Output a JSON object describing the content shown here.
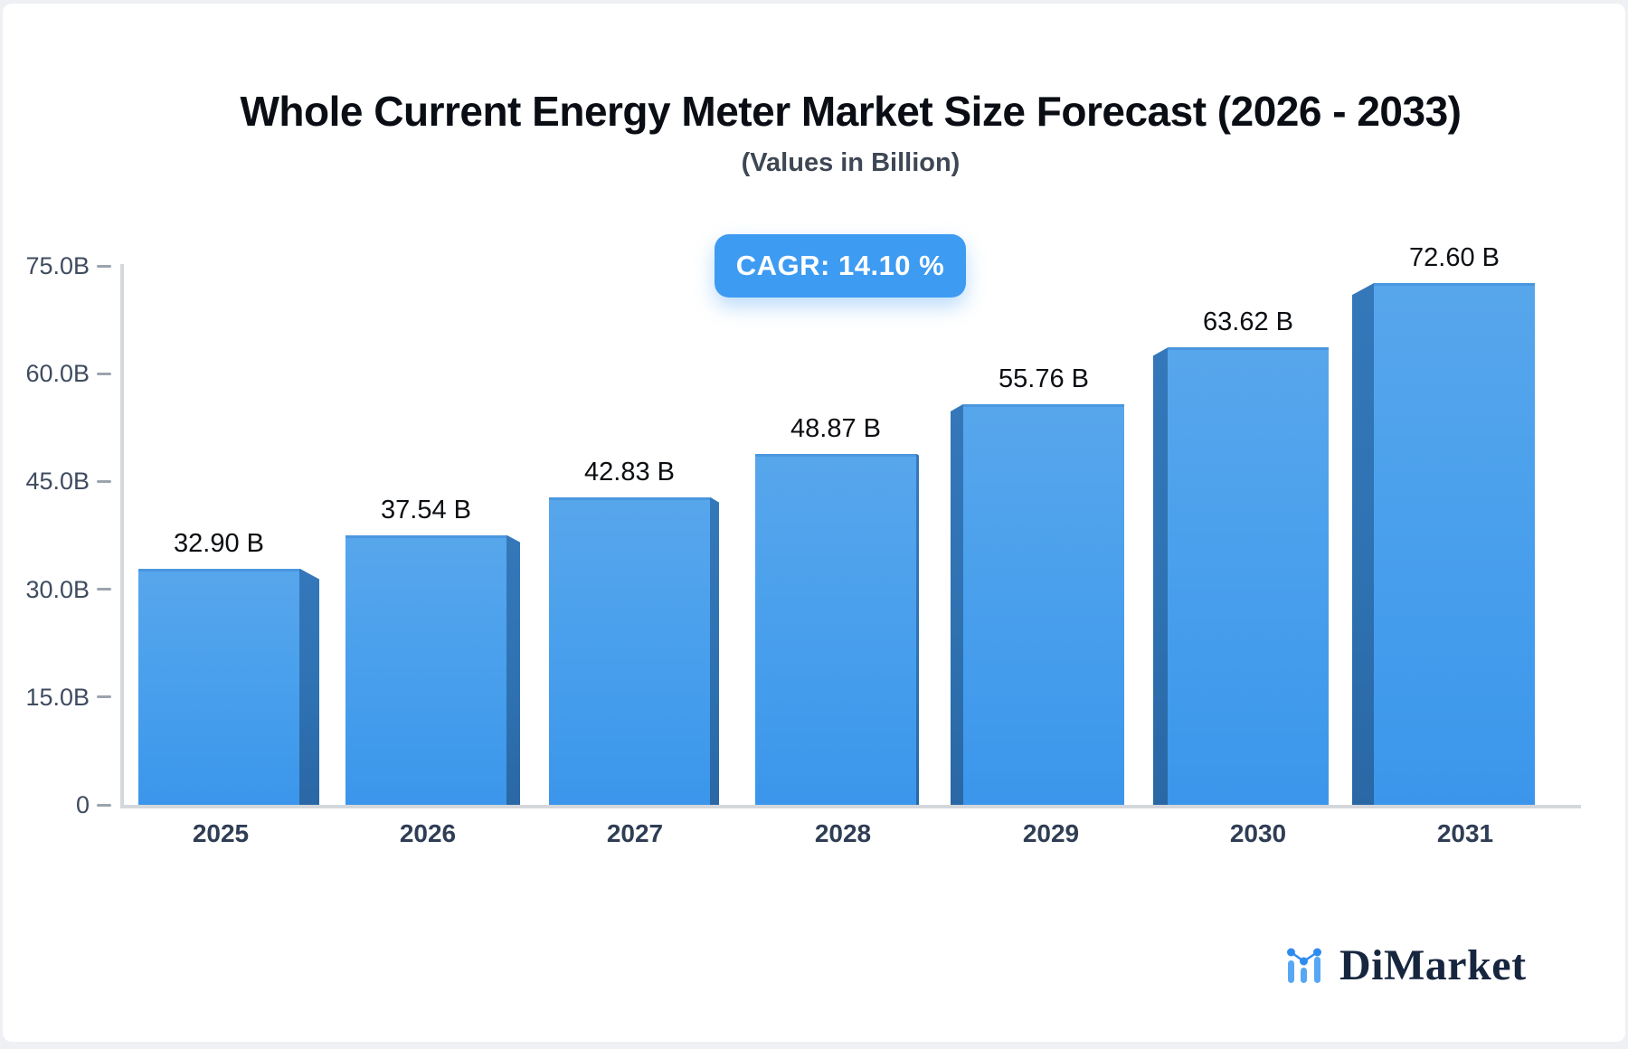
{
  "header": {
    "title": "Whole Current Energy Meter Market Size Forecast (2026 - 2033)",
    "subtitle": "(Values in Billion)"
  },
  "badge": {
    "label": "CAGR: 14.10 %",
    "color": "#3e9bf2"
  },
  "logo": {
    "text": "DiMarket",
    "icon": "mini-bar-chart-with-trend-dots-icon"
  },
  "chart_data": {
    "type": "bar",
    "title": "Whole Current Energy Meter Market Size Forecast (2026 - 2033)",
    "subtitle": "(Values in Billion)",
    "categories": [
      "2025",
      "2026",
      "2027",
      "2028",
      "2029",
      "2030",
      "2031"
    ],
    "values": [
      32.9,
      37.54,
      42.83,
      48.87,
      55.76,
      63.62,
      72.6
    ],
    "value_labels": [
      "32.90 B",
      "37.54 B",
      "42.83 B",
      "48.87 B",
      "55.76 B",
      "63.62 B",
      "72.60 B"
    ],
    "cagr_annotation": "CAGR: 14.10 %",
    "xlabel": "",
    "ylabel": "",
    "ylim": [
      0,
      75
    ],
    "yticks": [
      {
        "value": 75,
        "label": "75.0B"
      },
      {
        "value": 60,
        "label": "60.0B"
      },
      {
        "value": 45,
        "label": "45.0B"
      },
      {
        "value": 30,
        "label": "30.0B"
      },
      {
        "value": 15,
        "label": "15.0B"
      },
      {
        "value": 0,
        "label": "0"
      }
    ],
    "grid": false,
    "legend": false,
    "bar_style": "3d-bevel",
    "bar_face_color_top": "#57a6ec",
    "bar_face_color_bottom": "#3b96eb",
    "bar_side_color": "#2e72b2",
    "axis_line_color": "#d4d7dc",
    "tick_label_color": "#3f4b5f"
  }
}
